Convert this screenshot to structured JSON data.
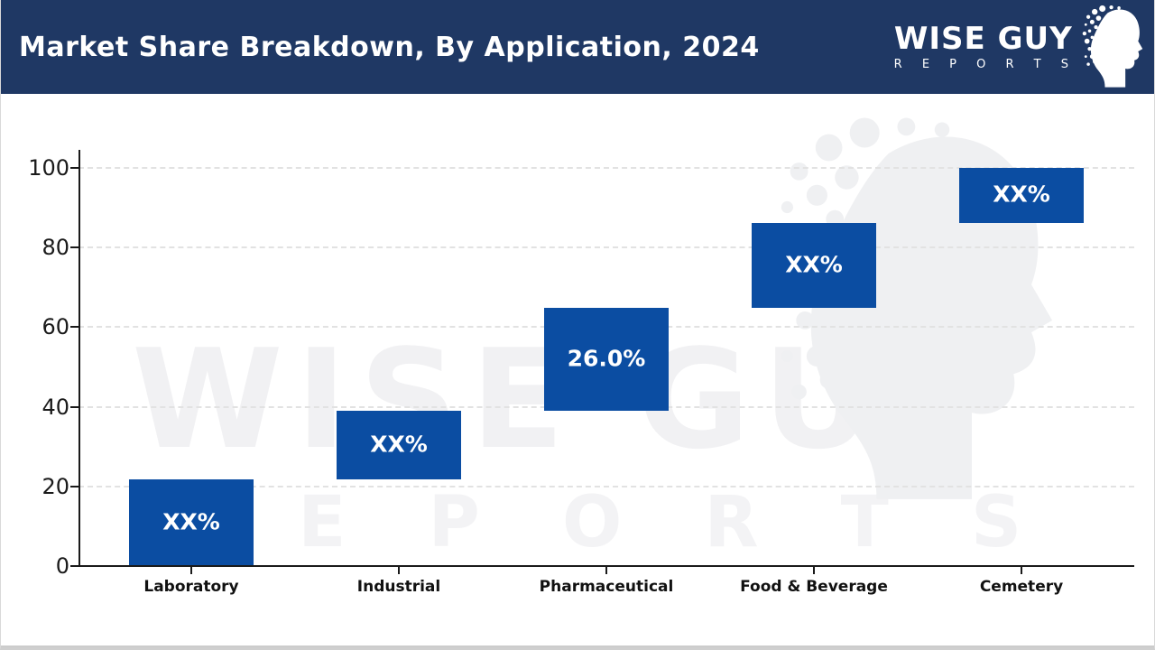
{
  "header": {
    "title": "Market Share Breakdown, By Application, 2024",
    "logo": {
      "line1": "WISE GUY",
      "line2": "R E P O R T S"
    }
  },
  "watermark": {
    "line1": "WISE GUY",
    "line2": "R E P O R T S"
  },
  "colors": {
    "header_bg": "#1f3864",
    "bar": "#0b4da2",
    "grid": "#e2e2e2",
    "axis": "#1a1a1a"
  },
  "chart_data": {
    "type": "bar",
    "subtype": "waterfall",
    "title": "Market Share Breakdown, By Application, 2024",
    "xlabel": "",
    "ylabel": "",
    "ylim": [
      0,
      105
    ],
    "yticks": [
      0,
      20,
      40,
      60,
      80,
      100
    ],
    "grid": true,
    "categories": [
      "Laboratory",
      "Industrial",
      "Pharmaceutical",
      "Food & Beverage",
      "Cemetery"
    ],
    "bars": [
      {
        "category": "Laboratory",
        "start": 0.0,
        "end": 21.8,
        "value": 21.8,
        "value_label": "XX%"
      },
      {
        "category": "Industrial",
        "start": 21.8,
        "end": 38.9,
        "value": 17.1,
        "value_label": "XX%"
      },
      {
        "category": "Pharmaceutical",
        "start": 38.9,
        "end": 64.9,
        "value": 26.0,
        "value_label": "26.0%"
      },
      {
        "category": "Food & Beverage",
        "start": 64.9,
        "end": 86.2,
        "value": 21.3,
        "value_label": "XX%"
      },
      {
        "category": "Cemetery",
        "start": 86.2,
        "end": 100.0,
        "value": 13.8,
        "value_label": "XX%"
      }
    ]
  }
}
